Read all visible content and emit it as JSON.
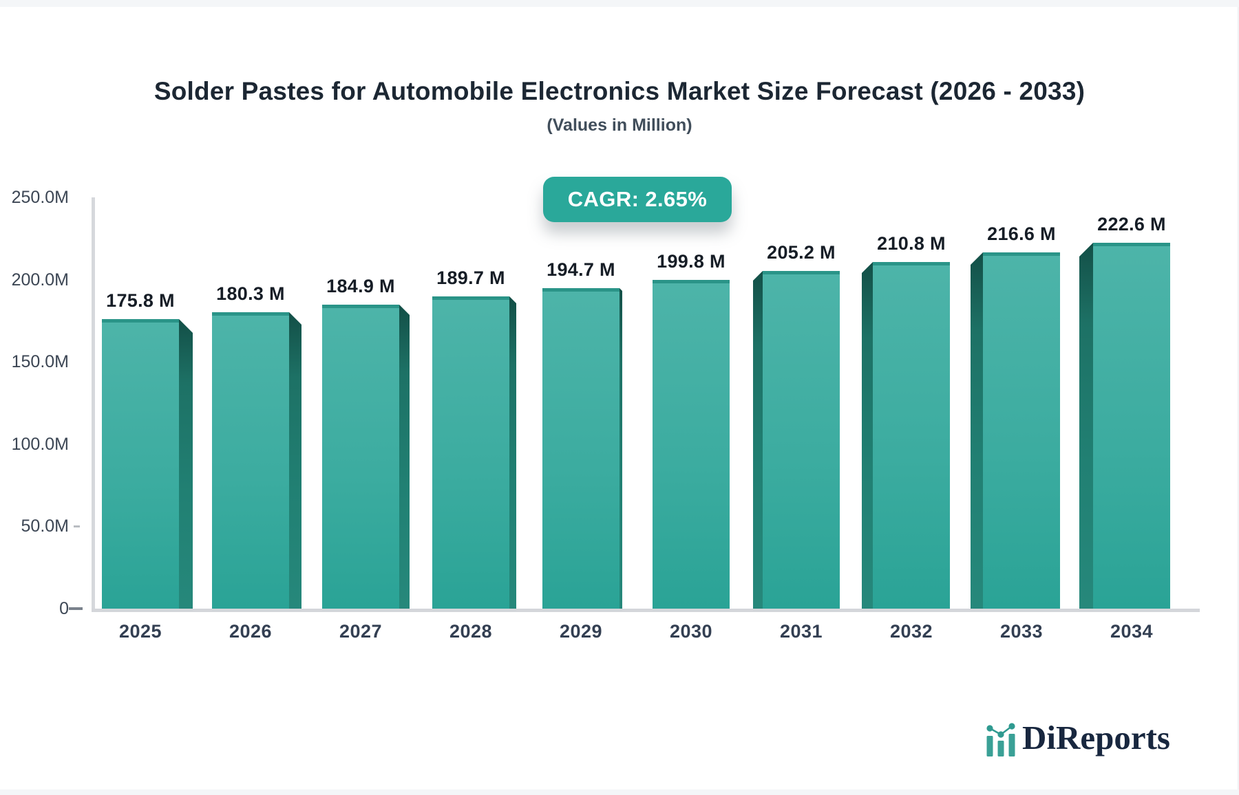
{
  "header": {
    "title": "Solder Pastes for Automobile Electronics Market Size Forecast (2026 - 2033)",
    "subtitle": "(Values in Million)"
  },
  "badge": {
    "label": "CAGR: 2.65%",
    "color": "#2aa89a"
  },
  "chart_data": {
    "type": "bar",
    "title": "Solder Pastes for Automobile Electronics Market Size Forecast (2026 - 2033)",
    "subtitle": "(Values in Million)",
    "unit": "Million",
    "categories": [
      "2025",
      "2026",
      "2027",
      "2028",
      "2029",
      "2030",
      "2031",
      "2032",
      "2033",
      "2034"
    ],
    "values": [
      175.8,
      180.3,
      184.9,
      189.7,
      194.7,
      199.8,
      205.2,
      210.8,
      216.6,
      222.6
    ],
    "value_labels": [
      "175.8 M",
      "180.3 M",
      "184.9 M",
      "189.7 M",
      "194.7 M",
      "199.8 M",
      "205.2 M",
      "210.8 M",
      "216.6 M",
      "222.6 M"
    ],
    "y_ticks": [
      "250.0M",
      "200.0M",
      "150.0M",
      "100.0M",
      "50.0M",
      "0"
    ],
    "ylim": [
      0,
      250
    ],
    "xlabel": "",
    "ylabel": "",
    "grid": false,
    "legend": false,
    "annotation": "CAGR: 2.65%",
    "bar_front_color": "#3caca0",
    "bar_side_color": "#1d7165",
    "bar_top_edge_color": "#2a9488",
    "axis_color": "#d4d6da"
  },
  "logo": {
    "text": "DiReports",
    "icon": "mini-bar-chart-icon",
    "text_color": "#18273f",
    "accent_color": "#2f9a90"
  }
}
